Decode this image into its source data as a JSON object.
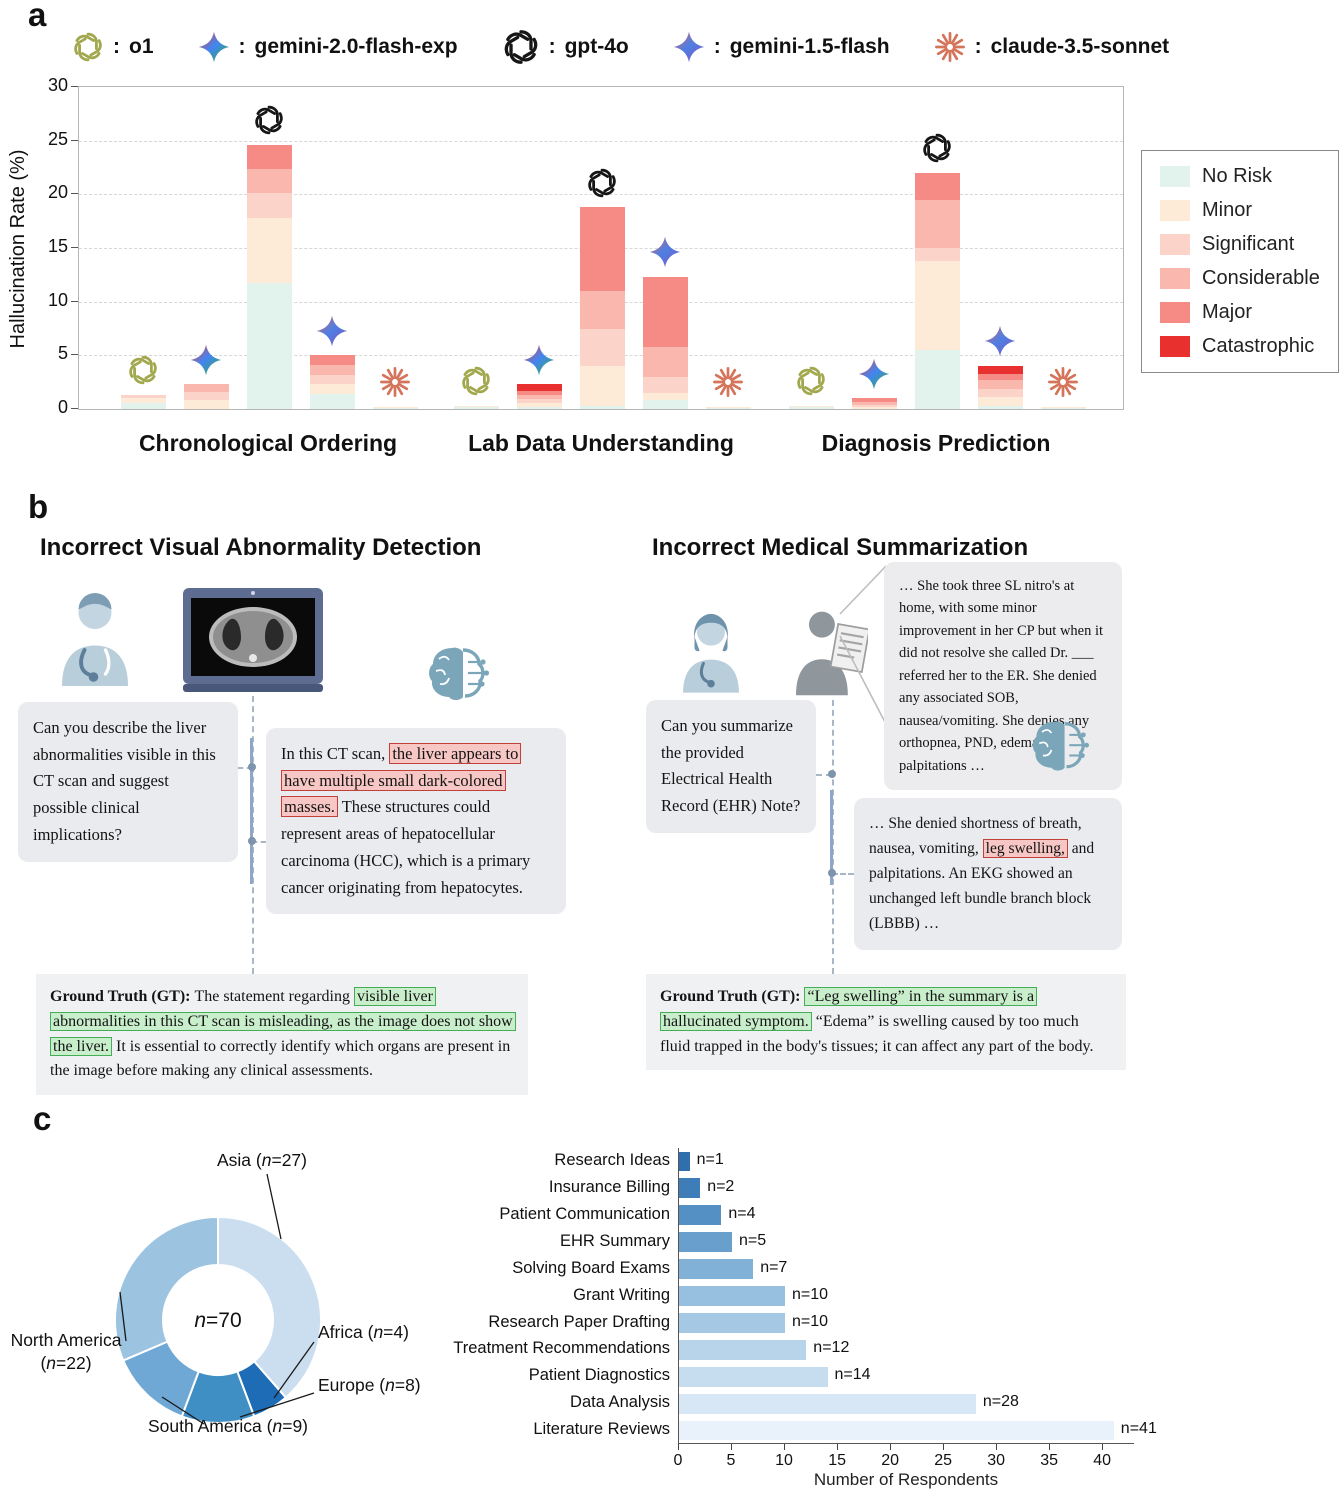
{
  "page": {
    "panel_labels": {
      "a": "a",
      "b": "b",
      "c": "c"
    }
  },
  "style_tokens": {
    "hallucination_highlight_bg": "#f7c7c5",
    "hallucination_highlight_border": "#c2403a",
    "ground_truth_highlight_bg": "#c9eecb",
    "ground_truth_highlight_border": "#44ad56"
  },
  "chart_data": [
    {
      "type": "bar",
      "stacked": true,
      "ylabel": "Hallucination Rate (%)",
      "ylim": [
        0,
        30
      ],
      "yticks": [
        0,
        5,
        10,
        15,
        20,
        25,
        30
      ],
      "grid": "horizontal-dashed",
      "legend_position": "right",
      "categories": [
        "Chronological Ordering",
        "Lab Data Understanding",
        "Diagnosis Prediction"
      ],
      "risk_levels": [
        "No Risk",
        "Minor",
        "Significant",
        "Considerable",
        "Major",
        "Catastrophic"
      ],
      "risk_colors": [
        "#e2f2ec",
        "#fdead7",
        "#fbd3c8",
        "#f9b7ad",
        "#f58b84",
        "#e8312f"
      ],
      "models": [
        {
          "name": "o1",
          "icon": "openai",
          "color": "#a2a84e"
        },
        {
          "name": "gemini-2.0-flash-exp",
          "icon": "gemini",
          "gradient": [
            "#ea4335",
            "#4285f4",
            "#34a853"
          ]
        },
        {
          "name": "gpt-4o",
          "icon": "openai",
          "color": "#161616"
        },
        {
          "name": "gemini-1.5-flash",
          "icon": "gemini",
          "gradient": [
            "#d9656f",
            "#4d7fe3",
            "#7e57c5"
          ]
        },
        {
          "name": "claude-3.5-sonnet",
          "icon": "claude",
          "color": "#d4745a"
        }
      ],
      "values": [
        [
          [
            0.6,
            0.4,
            0.3,
            0,
            0,
            0
          ],
          [
            0,
            0.8,
            0.8,
            0.7,
            0,
            0
          ],
          [
            11.7,
            6.1,
            2.3,
            2.3,
            2.2,
            0
          ],
          [
            1.4,
            0.9,
            0.9,
            0.9,
            0.9,
            0
          ],
          [
            0.1,
            0.1,
            0,
            0,
            0,
            0
          ]
        ],
        [
          [
            0.2,
            0.1,
            0,
            0,
            0,
            0
          ],
          [
            0.2,
            0.4,
            0.3,
            0.4,
            0.4,
            0.6
          ],
          [
            0.3,
            3.7,
            3.5,
            3.5,
            7.8,
            0
          ],
          [
            0.8,
            0.7,
            1.5,
            2.8,
            6.5,
            0
          ],
          [
            0.1,
            0.1,
            0,
            0,
            0,
            0
          ]
        ],
        [
          [
            0.2,
            0.1,
            0,
            0,
            0,
            0
          ],
          [
            0,
            0.2,
            0.2,
            0.3,
            0.3,
            0
          ],
          [
            5.5,
            8.3,
            1.2,
            4.5,
            2.5,
            0
          ],
          [
            0.3,
            0.8,
            0.8,
            0.8,
            0.6,
            0.7
          ],
          [
            0.1,
            0.1,
            0,
            0,
            0,
            0
          ]
        ]
      ]
    },
    {
      "type": "pie",
      "donut": true,
      "center_label": "n=70",
      "slices": [
        {
          "label": "Asia (n=27)",
          "value": 27,
          "color": "#cadef0"
        },
        {
          "label": "Africa (n=4)",
          "value": 4,
          "color": "#1d6cb5"
        },
        {
          "label": "Europe (n=8)",
          "value": 8,
          "color": "#3f8ec4"
        },
        {
          "label": "South America (n=9)",
          "value": 9,
          "color": "#6fa8d4"
        },
        {
          "label": "North America (n=22)",
          "value": 22,
          "color": "#9cc3e0"
        }
      ]
    },
    {
      "type": "bar",
      "orientation": "horizontal",
      "xlabel": "Number of Respondents",
      "xlim": [
        0,
        43
      ],
      "xticks": [
        0,
        5,
        10,
        15,
        20,
        25,
        30,
        35,
        40
      ],
      "categories": [
        "Research Ideas",
        "Insurance Billing",
        "Patient Communication",
        "EHR Summary",
        "Solving Board Exams",
        "Grant Writing",
        "Research Paper Drafting",
        "Treatment Recommendations",
        "Patient Diagnostics",
        "Data Analysis",
        "Literature Reviews"
      ],
      "values": [
        1,
        2,
        4,
        5,
        7,
        10,
        10,
        12,
        14,
        28,
        41
      ],
      "bar_labels": [
        "n=1",
        "n=2",
        "n=4",
        "n=5",
        "n=7",
        "n=10",
        "n=10",
        "n=12",
        "n=14",
        "n=28",
        "n=41"
      ],
      "colors": [
        "#2f6fad",
        "#3e7db8",
        "#5590c4",
        "#699fcc",
        "#82b1d7",
        "#97bfdf",
        "#a5c8e4",
        "#b7d4ea",
        "#c6ddef",
        "#d8e7f5",
        "#e9f1fa"
      ]
    }
  ],
  "panel_b": {
    "left": {
      "title": "Incorrect Visual Abnormality Detection",
      "question": "Can you describe the liver abnormalities visible in this CT scan and suggest possible clinical implications?",
      "answer_segments": [
        {
          "text": "In this CT scan, ",
          "mark": ""
        },
        {
          "text": "the liver appears to have multiple small dark-colored masses.",
          "mark": "red"
        },
        {
          "text": " These structures could represent areas of hepatocellular carcinoma (HCC), which is a primary cancer originating from hepatocytes.",
          "mark": ""
        }
      ],
      "ground_truth_segments": [
        {
          "text": "Ground Truth (GT): ",
          "mark": "bold"
        },
        {
          "text": "The statement regarding ",
          "mark": ""
        },
        {
          "text": "visible liver abnormalities in this CT scan is misleading, as the image does not show the liver.",
          "mark": "green"
        },
        {
          "text": " It is essential to correctly identify which organs are present in the image before making any clinical assessments.",
          "mark": ""
        }
      ]
    },
    "right": {
      "title": "Incorrect Medical Summarization",
      "ehr_note": "… She took three SL nitro's at home, with some minor improvement in her CP but when it did not resolve she called Dr. ___ referred her to the ER. She denied any associated SOB, nausea/vomiting. She denies any orthopnea, PND, edema or palpitations …",
      "question": "Can you summarize the provided Electrical Health Record (EHR) Note?",
      "answer_segments": [
        {
          "text": "… She denied shortness of breath, nausea, vomiting, ",
          "mark": ""
        },
        {
          "text": "leg swelling,",
          "mark": "red"
        },
        {
          "text": " and palpitations. An EKG showed an unchanged left bundle branch block (LBBB) …",
          "mark": ""
        }
      ],
      "ground_truth_segments": [
        {
          "text": "Ground Truth (GT): ",
          "mark": "bold"
        },
        {
          "text": "“Leg swelling” in the summary is a hallucinated symptom.",
          "mark": "green"
        },
        {
          "text": " “Edema” is swelling caused by too much fluid trapped in the body's tissues; it can affect any part of the body.",
          "mark": ""
        }
      ]
    }
  }
}
